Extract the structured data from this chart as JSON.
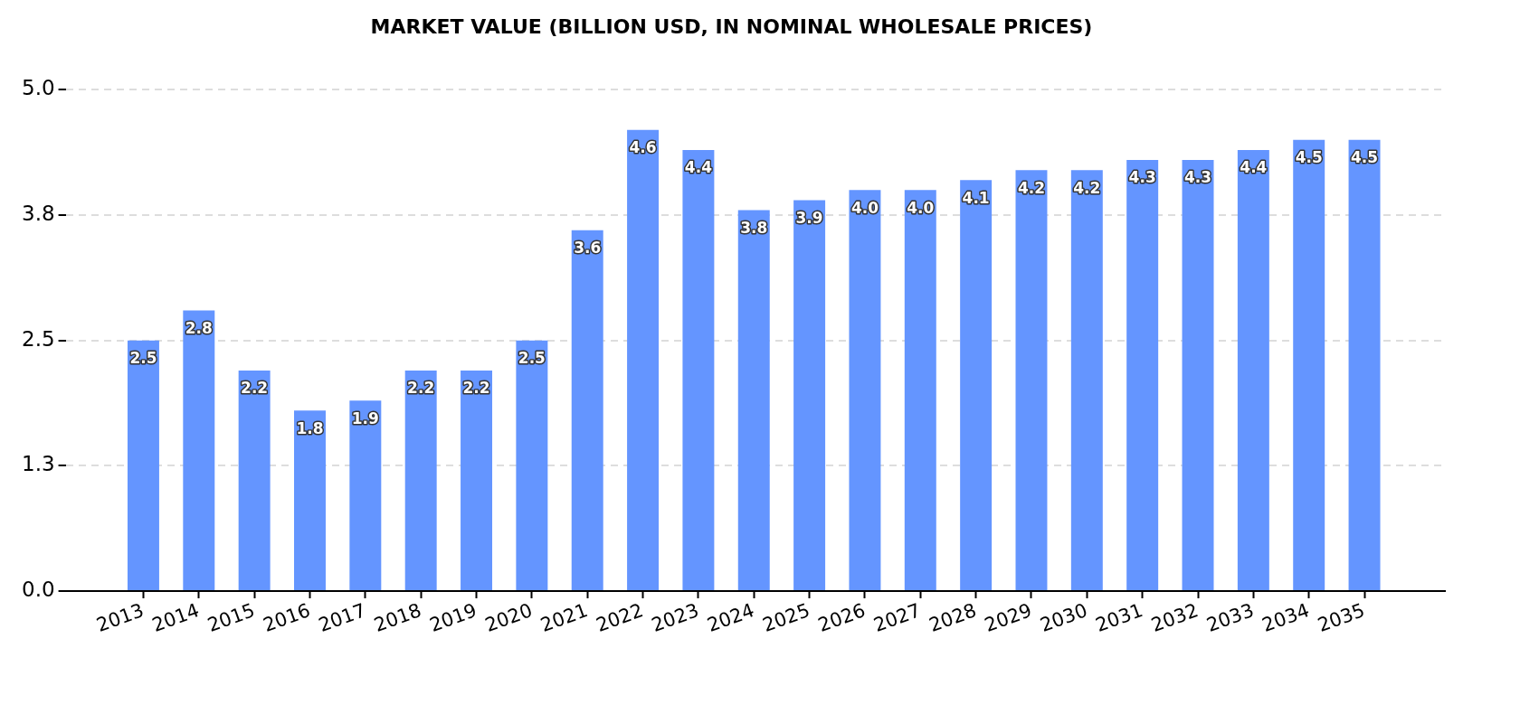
{
  "chart_data": {
    "type": "bar",
    "title": "MARKET VALUE (BILLION USD, IN NOMINAL WHOLESALE PRICES)",
    "categories": [
      "2013",
      "2014",
      "2015",
      "2016",
      "2017",
      "2018",
      "2019",
      "2020",
      "2021",
      "2022",
      "2023",
      "2024",
      "2025",
      "2026",
      "2027",
      "2028",
      "2029",
      "2030",
      "2031",
      "2032",
      "2033",
      "2034",
      "2035"
    ],
    "values": [
      2.5,
      2.8,
      2.2,
      1.8,
      1.9,
      2.2,
      2.2,
      2.5,
      3.6,
      4.6,
      4.4,
      3.8,
      3.9,
      4.0,
      4.0,
      4.1,
      4.2,
      4.2,
      4.3,
      4.3,
      4.4,
      4.5,
      4.5
    ],
    "value_labels": [
      "2.5",
      "2.8",
      "2.2",
      "1.8",
      "1.9",
      "2.2",
      "2.2",
      "2.5",
      "3.6",
      "4.6",
      "4.4",
      "3.8",
      "3.9",
      "4.0",
      "4.0",
      "4.1",
      "4.2",
      "4.2",
      "4.3",
      "4.3",
      "4.4",
      "4.5",
      "4.5"
    ],
    "color": "#6495ff",
    "ylim": [
      0,
      5
    ],
    "yticks": [
      {
        "value": 0,
        "label": "0.0"
      },
      {
        "value": 1.25,
        "label": "1.3"
      },
      2.5,
      {
        "value": 3.75,
        "label": "3.8"
      },
      {
        "value": 5,
        "label": "5.0"
      }
    ],
    "grid": "y"
  }
}
